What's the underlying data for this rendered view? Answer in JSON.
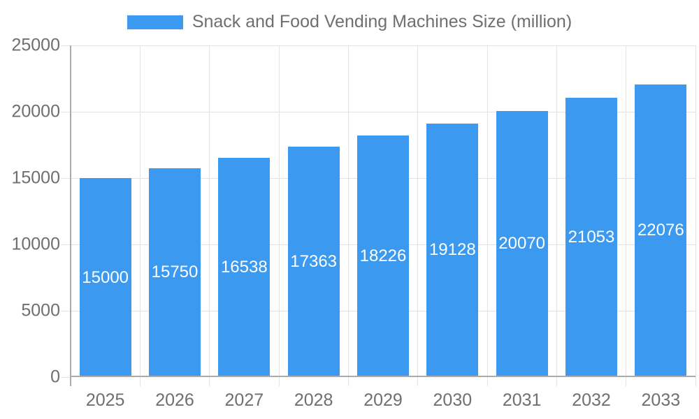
{
  "legend": {
    "label": "Snack and Food Vending Machines Size (million)",
    "swatch_color": "#3b99f0",
    "position": "top"
  },
  "chart_data": {
    "type": "bar",
    "title": "Snack and Food Vending Machines Size (million)",
    "categories": [
      "2025",
      "2026",
      "2027",
      "2028",
      "2029",
      "2030",
      "2031",
      "2032",
      "2033"
    ],
    "series": [
      {
        "name": "Snack and Food Vending Machines Size (million)",
        "values": [
          15000,
          15750,
          16538,
          17363,
          18226,
          19128,
          20070,
          21053,
          22076
        ]
      }
    ],
    "value_labels": [
      "15000",
      "15750",
      "16538",
      "17363",
      "18226",
      "19128",
      "20070",
      "21053",
      "22076"
    ],
    "xlabel": "",
    "ylabel": "",
    "ylim": [
      0,
      25000
    ],
    "yticks": [
      0,
      5000,
      10000,
      15000,
      20000,
      25000
    ],
    "grid": true,
    "legend_position": "top",
    "bar_color": "#3b99f0",
    "value_label_color": "#ffffff"
  },
  "colors": {
    "accent": "#3b99f0",
    "grid_line": "#e3e3e3",
    "axis_line": "#ababab",
    "axis_text": "#6f6f6f",
    "value_text": "#ffffff",
    "background": "#ffffff"
  }
}
